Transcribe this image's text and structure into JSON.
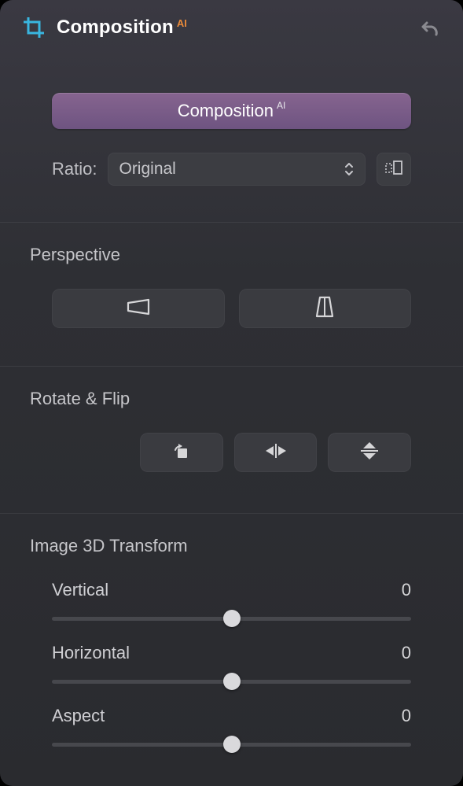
{
  "colors": {
    "panel_bg_top": "#3a3942",
    "panel_bg_bottom": "#2a2b2f",
    "accent_crop": "#39b6e0",
    "accent_ai": "#e98a3a",
    "text_primary": "#ffffff",
    "text_secondary": "#c6c6ca",
    "control_bg": "#3a3b40",
    "select_bg": "#3c3d42",
    "comp_btn_top": "#86648f",
    "comp_btn_bottom": "#6e5481",
    "slider_track": "#47484d",
    "slider_thumb": "#d9d9dc",
    "divider": "rgba(255,255,255,0.07)"
  },
  "header": {
    "title": "Composition",
    "ai_badge": "AI"
  },
  "composition_button": {
    "label": "Composition",
    "ai_badge": "AI"
  },
  "ratio": {
    "label": "Ratio:",
    "selected": "Original"
  },
  "perspective": {
    "title": "Perspective"
  },
  "rotate_flip": {
    "title": "Rotate & Flip"
  },
  "transform3d": {
    "title": "Image 3D Transform",
    "sliders": [
      {
        "label": "Vertical",
        "value": "0",
        "position_pct": 50
      },
      {
        "label": "Horizontal",
        "value": "0",
        "position_pct": 50
      },
      {
        "label": "Aspect",
        "value": "0",
        "position_pct": 50
      }
    ]
  }
}
